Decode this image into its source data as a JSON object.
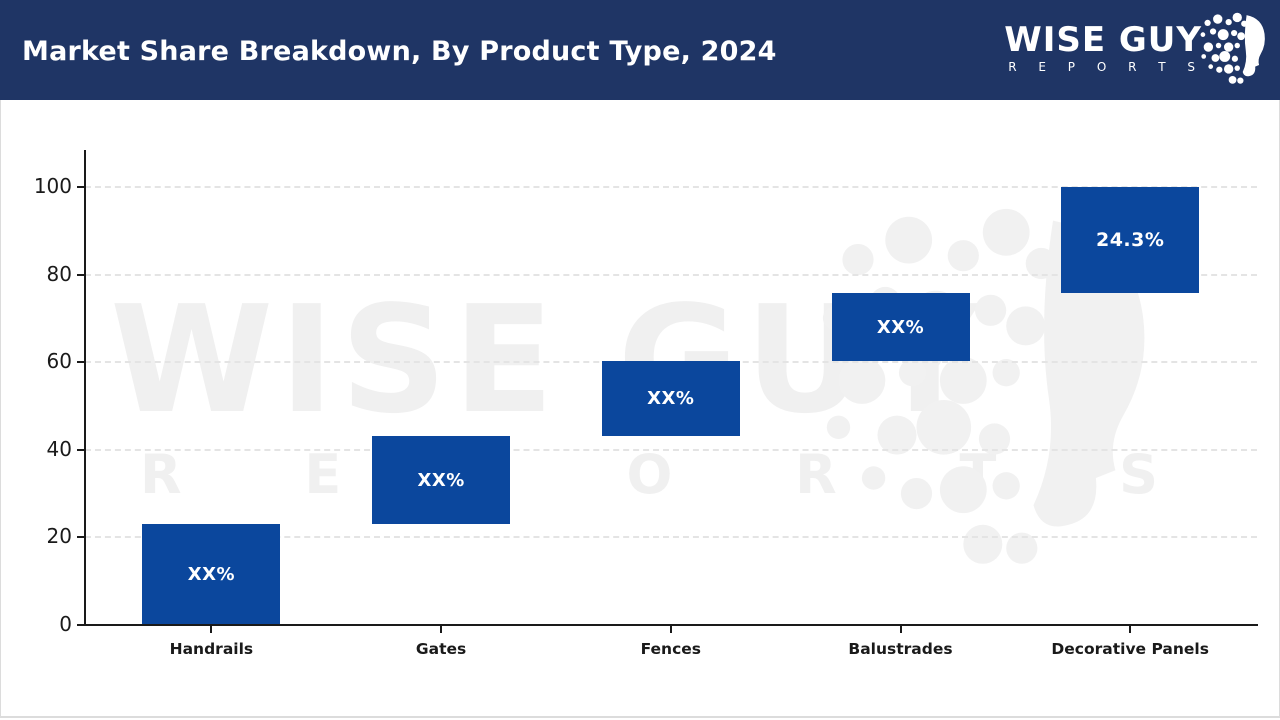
{
  "header": {
    "title": "Market Share Breakdown, By Product Type, 2024",
    "logo": {
      "name": "WISE GUY",
      "subname": "R E P O R T S"
    }
  },
  "watermark": {
    "line1": "WISE GUY",
    "line2": "R E P O R T S"
  },
  "chart_data": {
    "type": "bar",
    "subtype": "waterfall",
    "title": "Market Share Breakdown, By Product Type, 2024",
    "categories": [
      "Handrails",
      "Gates",
      "Fences",
      "Balustrades",
      "Decorative Panels"
    ],
    "segments": [
      {
        "category": "Handrails",
        "start": 0,
        "end": 23,
        "label": "XX%"
      },
      {
        "category": "Gates",
        "start": 23,
        "end": 43.2,
        "label": "XX%"
      },
      {
        "category": "Fences",
        "start": 43.2,
        "end": 60.2,
        "label": "XX%"
      },
      {
        "category": "Balustrades",
        "start": 60.2,
        "end": 75.7,
        "label": "XX%"
      },
      {
        "category": "Decorative Panels",
        "start": 75.7,
        "end": 100,
        "label": "24.3%"
      }
    ],
    "yticks": [
      0,
      20,
      40,
      60,
      80,
      100
    ],
    "ylim": [
      0,
      107
    ],
    "xlabel": "",
    "ylabel": "",
    "grid": true,
    "legend": false,
    "bar_color": "#0b479d",
    "bar_label_color": "#ffffff"
  },
  "colors": {
    "header_bg": "#1f3565",
    "bar": "#0b479d",
    "grid": "#e4e4e4",
    "axis": "#1a1a1a",
    "watermark": "#f0f0f0",
    "edge_line": "#dcdcdc"
  }
}
